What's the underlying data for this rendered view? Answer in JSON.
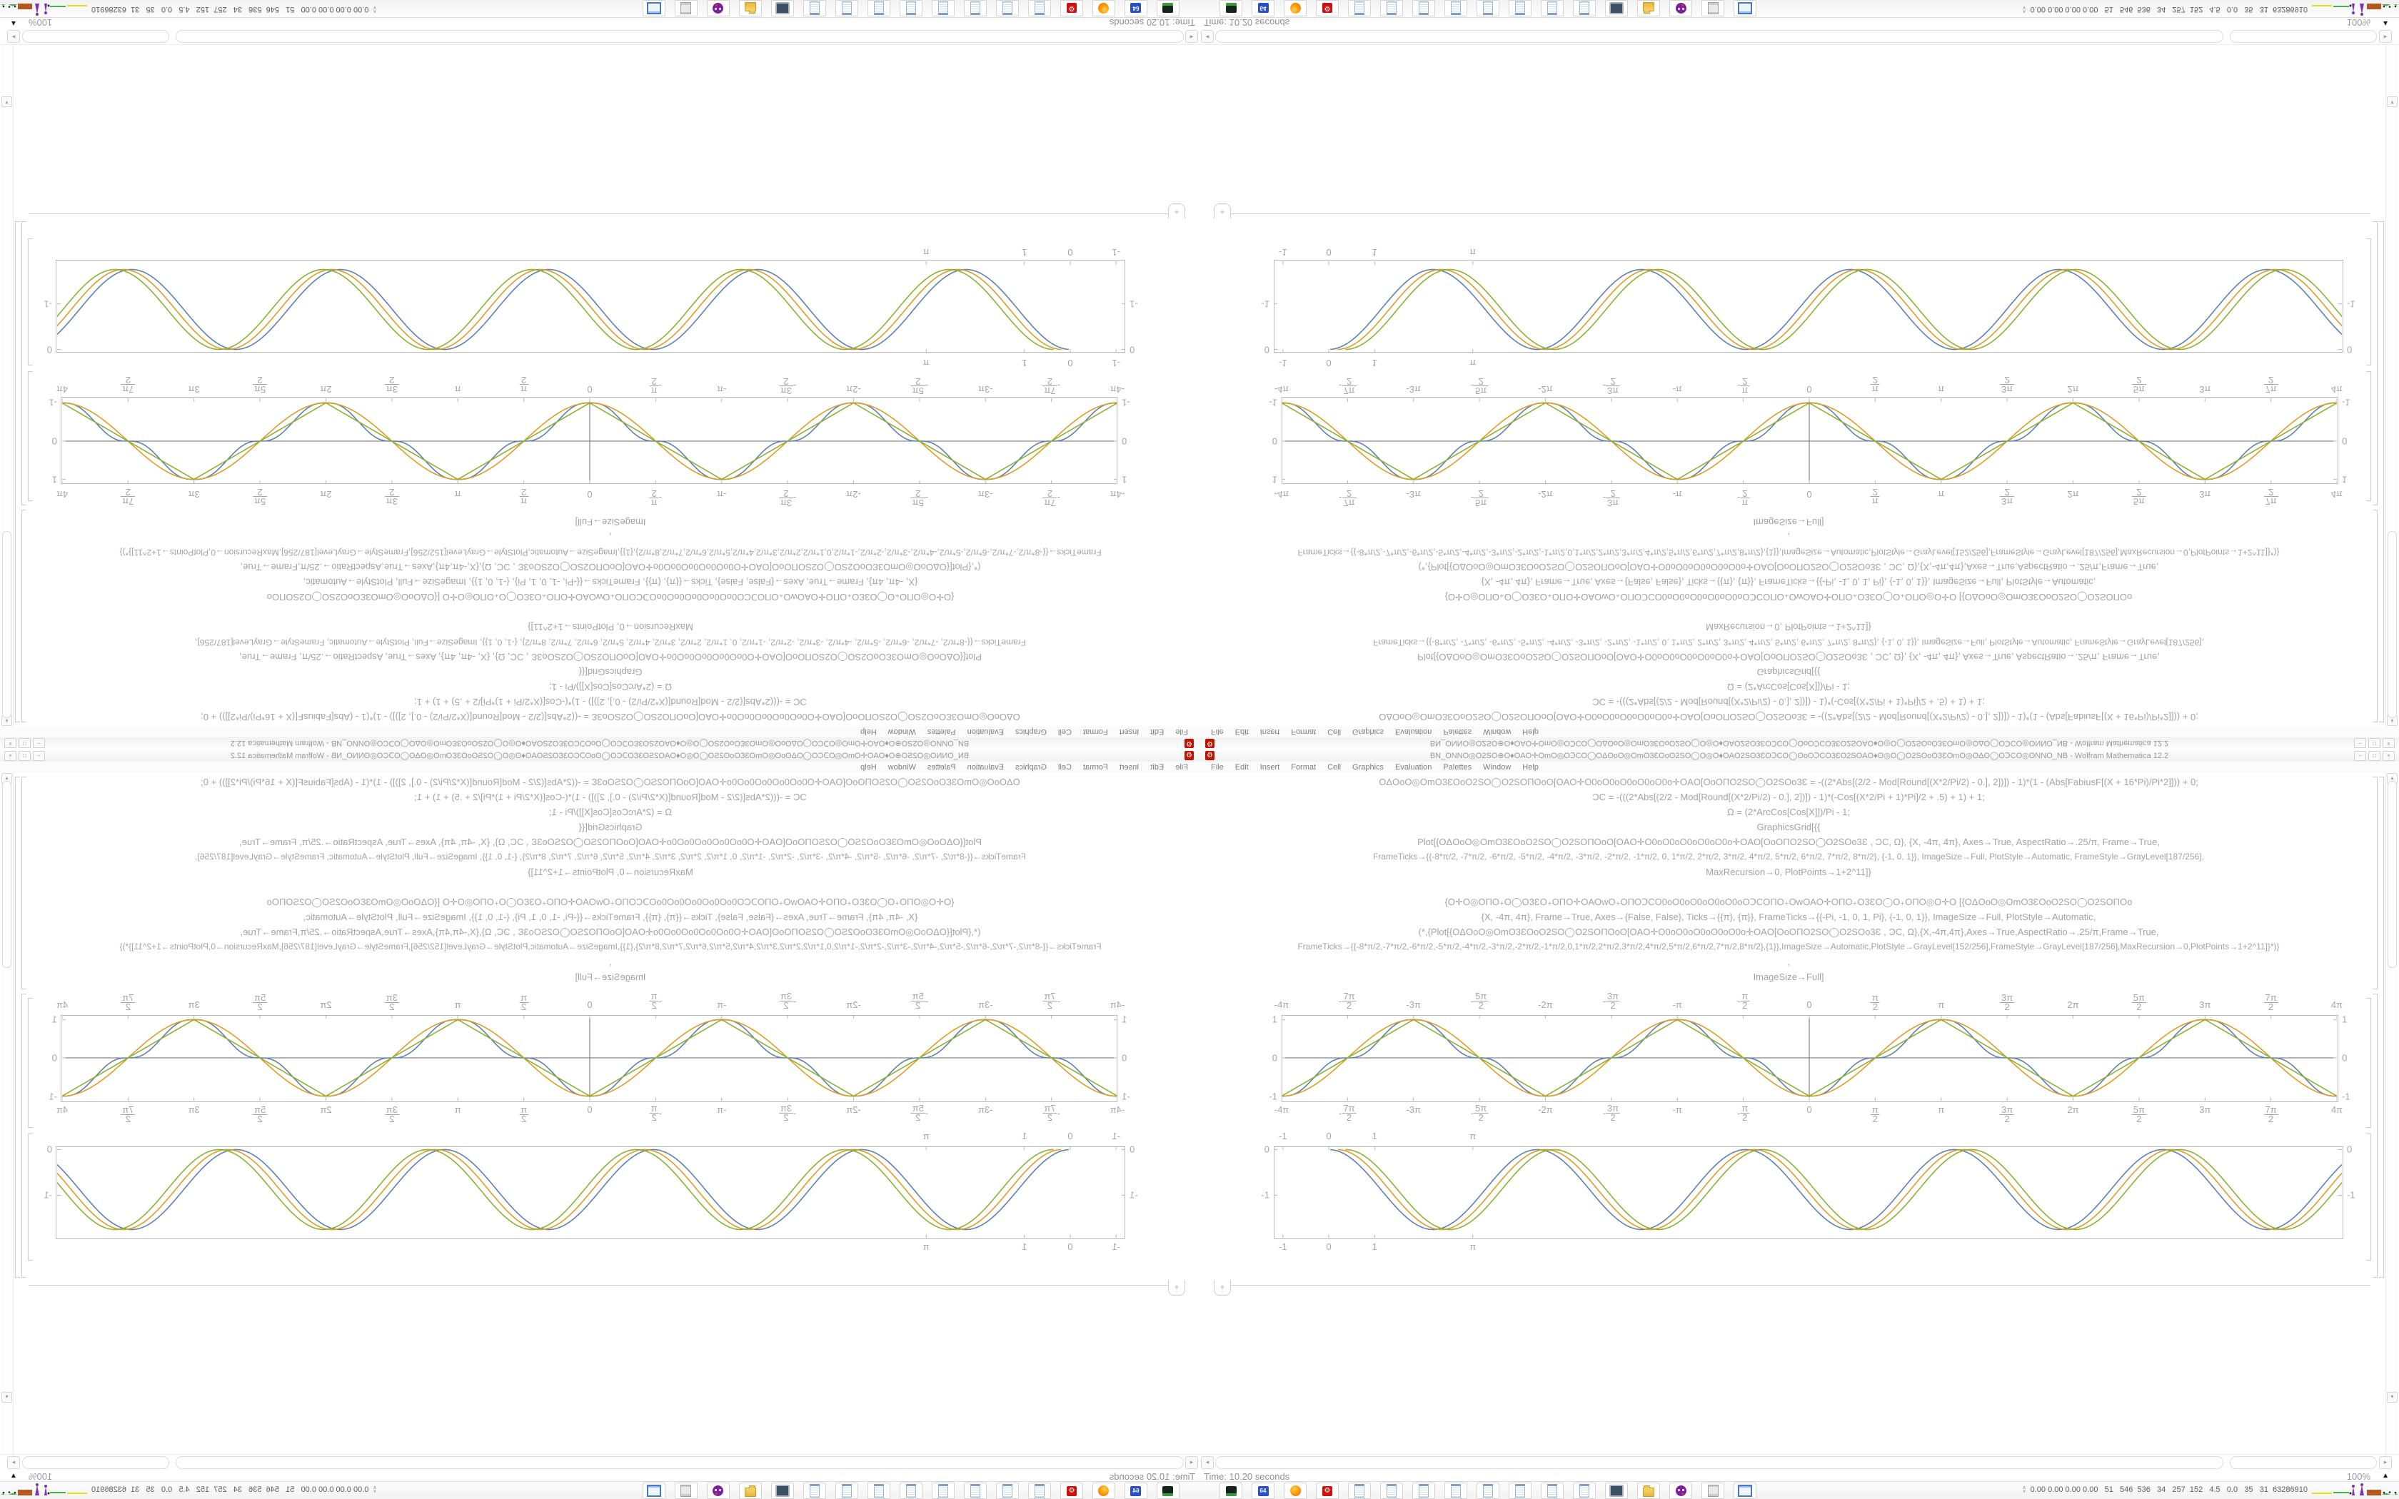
{
  "window": {
    "title_garble": "BN_ONNO◎O2SO⊕O♦OAO✛OmO◎OↃCO◯OΔOoO◎OmO3ƐOoO2SO◯O◎O♦OAO2SO3ƐOↃCO◯OoOↃCO3ƐO2SOAO♦O◎O◯O2SOoO3ƐOmO◎OΔO◯OↃCO◎ONNO_NB",
    "title_suffix": " - Wolfram Mathematica 12.2",
    "buttons": [
      {
        "name": "minimize-button",
        "glyph": "–"
      },
      {
        "name": "restore-button",
        "glyph": "□"
      },
      {
        "name": "close-button",
        "glyph": "×"
      }
    ]
  },
  "menu": {
    "items": [
      "File",
      "Edit",
      "Insert",
      "Format",
      "Cell",
      "Graphics",
      "Evaluation",
      "Palettes",
      "Window",
      "Help"
    ]
  },
  "notebook": {
    "insert_marker": "+",
    "code_lines": [
      {
        "text": "OΔOoO◎OmO3ƐOoO2SO◯O2SOΠOoO[OAO✛O0oO0oO0oO0oO0o✛OAO[OoOΠO2SO◯O2SOo3Ɛ  = -((2*Abs[(2/2 - Mod[Round[(X*2/Pi/2) - 0.], 2])]) - 1)*(1 - (Abs[FabiusF[(X + 16*Pi)/Pi*2]])) + 0;"
      },
      {
        "text": "ƆC = -(((2*Abs[(2/2 - Mod[Round[(X*2/Pi/2) - 0.], 2])]) - 1)*(-Cos[(X*2/Pi + 1)*Pi]/2 + .5) + 1) + 1;"
      },
      {
        "text": "Ω = (2*ArcCos[Cos[X]])/Pi - 1;"
      },
      {
        "text": "GraphicsGrid[{{"
      },
      {
        "text": "Plot[{OΔOoO◎OmO3ƐOoO2SO◯O2SOΠOoO[OAO✛O0oO0oO0oO0oO0o✛OAO[OoOΠO2SO◯O2SOo3Ɛ , ƆC, Ω}, {X, -4π, 4π}, Axes→True, AspectRatio→.25/π, Frame→True,"
      },
      {
        "text": "FrameTicks→{{-8*π/2, -7*π/2, -6*π/2, -5*π/2, -4*π/2, -3*π/2, -2*π/2, -1*π/2, 0, 1*π/2, 2*π/2, 3*π/2, 4*π/2, 5*π/2, 6*π/2, 7*π/2, 8*π/2}, {-1, 0, 1}}, ImageSize→Full, PlotStyle→Automatic, FrameStyle→GrayLevel[187/256],"
      },
      {
        "text": "MaxRecursion→0, PlotPoints→1+2^11]}"
      },
      {
        "text": ""
      },
      {
        "text": "{O✛O◎OΠO₊O◯O3ƐO₊OΠO✛OAOwO₊OΠOↃCO0oO0oO0oO0oO0oOↃCOΠO₊OwOAO✛OΠO₊O3ƐO◯O₊OΠO◎O✛O   [{OΔOoO◎OmO3ƐOoO2SO◯O2SOΠOo"
      },
      {
        "text": "{X, -4π, 4π}, Frame→True, Axes→{False, False}, Ticks→{{π}, {π}}, FrameTicks→{{-Pi, -1, 0, 1, Pi}, {-1, 0, 1}}, ImageSize→Full, PlotStyle→Automatic,"
      },
      {
        "text": "(*,{Plot[{OΔOoO◎OmO3ƐOoO2SO◯O2SOΠOoO[OAO✛O0oO0oO0oO0oO0o✛OAO[OoOΠO2SO◯O2SOo3Ɛ , ƆC, Ω},{X,-4π,4π},Axes→True,AspectRatio→.25/π,Frame→True,"
      },
      {
        "text": "FrameTicks→{{-8*π/2,-7*π/2,-6*π/2,-5*π/2,-4*π/2,-3*π/2,-2*π/2,-1*π/2,0,1*π/2,2*π/2,3*π/2,4*π/2,5*π/2,6*π/2,7*π/2,8*π/2},{1}},ImageSize→Automatic,PlotStyle→GrayLevel[152/256],FrameStyle→GrayLevel[187/256],MaxRecursion→0,PlotPoints→1+2^11]}*)}"
      },
      {
        "text": ","
      },
      {
        "text": "ImageSize→Full]"
      }
    ]
  },
  "chart_data": [
    {
      "type": "line",
      "title": "",
      "xlabel": "",
      "ylabel": "",
      "x_range": [
        -12.566,
        12.566
      ],
      "y_range": [
        -1.12,
        1.12
      ],
      "frame": true,
      "axes": true,
      "grid": false,
      "legend_position": "none",
      "x_ticks": [
        {
          "value": -12.566,
          "label": "-4π"
        },
        {
          "value": -10.996,
          "fraction": {
            "sign": "-",
            "num": "7π",
            "den": "2"
          }
        },
        {
          "value": -9.4248,
          "label": "-3π"
        },
        {
          "value": -7.854,
          "fraction": {
            "sign": "-",
            "num": "5π",
            "den": "2"
          }
        },
        {
          "value": -6.2832,
          "label": "-2π"
        },
        {
          "value": -4.7124,
          "fraction": {
            "sign": "-",
            "num": "3π",
            "den": "2"
          }
        },
        {
          "value": -3.1416,
          "label": "-π"
        },
        {
          "value": -1.5708,
          "fraction": {
            "sign": "-",
            "num": "π",
            "den": "2"
          }
        },
        {
          "value": 0,
          "label": "0"
        },
        {
          "value": 1.5708,
          "fraction": {
            "sign": "",
            "num": "π",
            "den": "2"
          }
        },
        {
          "value": 3.1416,
          "label": "π"
        },
        {
          "value": 4.7124,
          "fraction": {
            "sign": "",
            "num": "3π",
            "den": "2"
          }
        },
        {
          "value": 6.2832,
          "label": "2π"
        },
        {
          "value": 7.854,
          "fraction": {
            "sign": "",
            "num": "5π",
            "den": "2"
          }
        },
        {
          "value": 9.4248,
          "label": "3π"
        },
        {
          "value": 10.996,
          "fraction": {
            "sign": "",
            "num": "7π",
            "den": "2"
          }
        },
        {
          "value": 12.566,
          "label": "4π"
        }
      ],
      "y_ticks": [
        {
          "value": 1,
          "label": "1"
        },
        {
          "value": 0,
          "label": "0"
        },
        {
          "value": -1,
          "label": "-1"
        }
      ],
      "series": [
        {
          "name": "fabius-smooth-staircase-wave",
          "color": "#5e81b5",
          "shape": "stair",
          "period": 6.2832,
          "amplitude": 1
        },
        {
          "name": "negative-cosine-wave",
          "color": "#e19c24",
          "shape": "negcos",
          "period": 6.2832,
          "amplitude": 1
        },
        {
          "name": "triangle-wave",
          "color": "#8fb131",
          "shape": "triangle",
          "period": 6.2832,
          "amplitude": 1
        }
      ]
    },
    {
      "type": "line",
      "title": "",
      "xlabel": "",
      "ylabel": "",
      "x_range": [
        -1.2,
        22.1
      ],
      "y_range": [
        -1.93,
        0.07
      ],
      "frame": true,
      "axes": false,
      "grid": false,
      "legend_position": "none",
      "x_ticks": [
        {
          "value": -1,
          "label": "-1"
        },
        {
          "value": 0,
          "label": "0"
        },
        {
          "value": 1,
          "label": "1"
        },
        {
          "value": 3.1416,
          "label": "π"
        }
      ],
      "y_ticks": [
        {
          "value": 0,
          "label": "0"
        },
        {
          "value": -1,
          "label": "-1"
        }
      ],
      "series": [
        {
          "name": "dip-wave-blue",
          "color": "#5e81b5",
          "shape": "dip",
          "period": 4.55,
          "depth": 1.75,
          "shift": 0
        },
        {
          "name": "dip-wave-orange",
          "color": "#e19c24",
          "shape": "dip",
          "period": 4.55,
          "depth": 1.75,
          "shift": 0.18
        },
        {
          "name": "dip-wave-green",
          "color": "#8fb131",
          "shape": "dip",
          "period": 4.55,
          "depth": 1.75,
          "shift": 0.36
        }
      ]
    }
  ],
  "scrollbars": {
    "up_arrow": "▴",
    "down_arrow": "▾",
    "left_arrow": "◂",
    "right_arrow": "▸"
  },
  "statusbar": {
    "time_label": "Time: 10.20 seconds",
    "zoom_level": "100%",
    "resize_grip": "▲"
  },
  "taskbar": {
    "icons": [
      {
        "name": "terminal-icon",
        "type": "terminal"
      },
      {
        "name": "vice-c64-icon",
        "type": "floppy64",
        "label": "64"
      },
      {
        "name": "firefox-icon",
        "type": "firefox"
      },
      {
        "name": "mathematica-gear-icon",
        "type": "gear",
        "glyph": "⚙"
      },
      {
        "name": "notepad-window-1",
        "type": "notepad"
      },
      {
        "name": "notepad-window-2",
        "type": "notepad"
      },
      {
        "name": "notepad-window-3",
        "type": "notepad"
      },
      {
        "name": "notepad-window-4",
        "type": "notepad"
      },
      {
        "name": "notepad-window-5",
        "type": "notepad"
      },
      {
        "name": "notepad-window-6",
        "type": "notepad"
      },
      {
        "name": "notepad-window-7",
        "type": "notepad"
      },
      {
        "name": "notepad-window-8",
        "type": "notepad"
      },
      {
        "name": "system-monitor-icon",
        "type": "monitor"
      },
      {
        "name": "file-manager-icon",
        "type": "folder"
      },
      {
        "name": "purple-app-icon",
        "type": "purple"
      },
      {
        "name": "document-scroll-icon",
        "type": "scroll"
      },
      {
        "name": "window-frame-icon",
        "type": "window"
      }
    ],
    "expander_up": "∧",
    "expander_down": "∨",
    "monitor_values": "0.00 0.00 0.00 0.00   51   546  536   34   257  152   4.5   0.0   35   31  63286910",
    "sparkline_colors": {
      "yellow": "#e0e018",
      "green": "#46b446",
      "purple": "#7b2fbe",
      "brown": "#b4591b",
      "dark": "#222222"
    }
  },
  "app_icon_glyph": "⚙"
}
